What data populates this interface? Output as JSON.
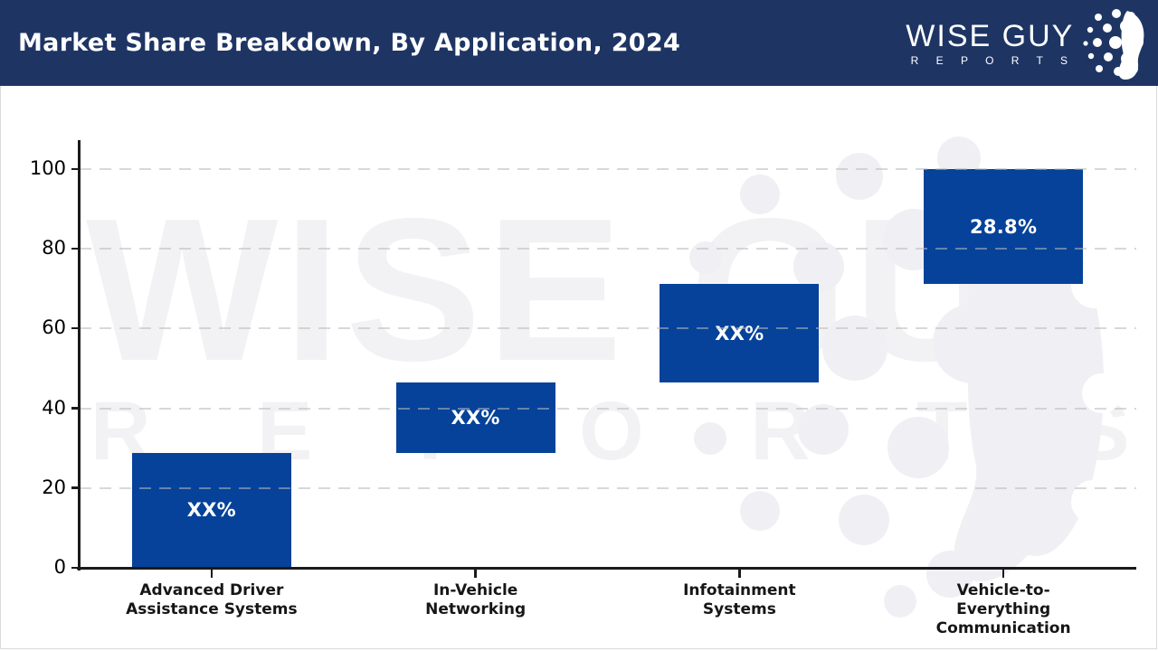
{
  "header": {
    "title": "Market Share Breakdown, By Application, 2024",
    "logo": {
      "wordmark": "WISE GUY",
      "subtext": "R E P O R T S"
    }
  },
  "colors": {
    "header_bg": "#1e3564",
    "bar_fill": "#06429a",
    "grid_line": "#e3e3e3",
    "axis": "#1a1a1a",
    "bar_label_text": "#ffffff",
    "watermark": "#f2f2f5"
  },
  "watermark": {
    "line1": "WISE GU",
    "line2": "R E P O R T S"
  },
  "chart_data": {
    "type": "bar",
    "subtype": "floating-waterfall",
    "title": "Market Share Breakdown, By Application, 2024",
    "xlabel": "",
    "ylabel": "",
    "ylim": [
      0,
      107
    ],
    "yticks": [
      0,
      20,
      40,
      60,
      80,
      100
    ],
    "grid": "horizontal-dashed",
    "legend": "none",
    "categories": [
      "Advanced Driver\nAssistance Systems",
      "In-Vehicle\nNetworking",
      "Infotainment\nSystems",
      "Vehicle-to-\nEverything\nCommunication"
    ],
    "bars": [
      {
        "category": "Advanced Driver Assistance Systems",
        "start": 0,
        "end": 28.8,
        "value": 28.8,
        "label": "XX%"
      },
      {
        "category": "In-Vehicle Networking",
        "start": 28.8,
        "end": 46.4,
        "value": 17.6,
        "label": "XX%"
      },
      {
        "category": "Infotainment Systems",
        "start": 46.4,
        "end": 71.2,
        "value": 24.8,
        "label": "XX%"
      },
      {
        "category": "Vehicle-to-Everything Communication",
        "start": 71.2,
        "end": 100,
        "value": 28.8,
        "label": "28.8%"
      }
    ]
  }
}
